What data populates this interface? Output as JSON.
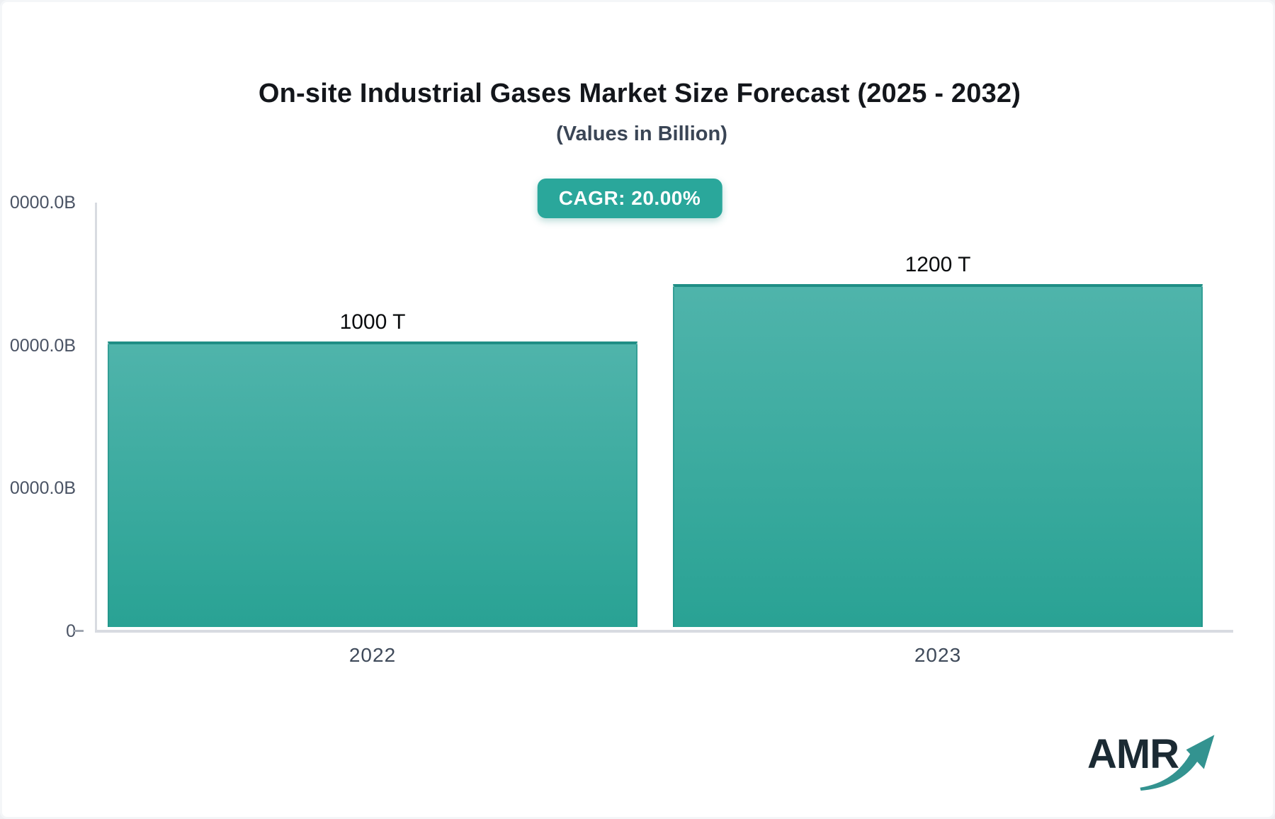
{
  "header": {
    "title": "On-site Industrial Gases Market Size Forecast (2025 - 2032)",
    "subtitle": "(Values in Billion)",
    "cagr_badge": "CAGR: 20.00%"
  },
  "chart_data": {
    "type": "bar",
    "title": "On-site Industrial Gases Market Size Forecast (2025 - 2032)",
    "subtitle": "(Values in Billion)",
    "unit": "Billion",
    "cagr_percent": 20.0,
    "categories": [
      "2022",
      "2023"
    ],
    "values": [
      1000,
      1200
    ],
    "bar_labels": [
      "1000 T",
      "1200 T"
    ],
    "ylim": [
      0,
      1500
    ],
    "y_ticks": [
      {
        "label": "0000.0B",
        "value": 1500
      },
      {
        "label": "0000.0B",
        "value": 1000
      },
      {
        "label": "0000.0B",
        "value": 500
      },
      {
        "label": "0",
        "value": 0
      }
    ],
    "grid": false,
    "legend": false,
    "colors": {
      "bar_gradient_top": "#4fb4ab",
      "bar_gradient_bottom": "#29a294",
      "bar_border": "#1f8e85",
      "badge_bg": "#2aa79b",
      "axis_line": "#d8dbe1",
      "tick_text": "#4a5364",
      "title_text": "#13161b",
      "logo_arrow": "#339390"
    }
  },
  "logo": {
    "text": "AMR"
  }
}
